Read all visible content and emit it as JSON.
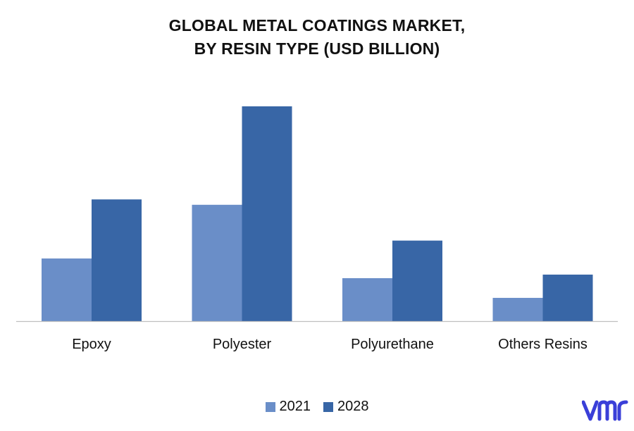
{
  "chart_data": {
    "type": "bar",
    "title_lines": [
      "GLOBAL METAL COATINGS MARKET,",
      "BY RESIN TYPE (USD BILLION)"
    ],
    "categories": [
      "Epoxy",
      "Polyester",
      "Polyurethane",
      "Others Resins"
    ],
    "series": [
      {
        "name": "2021",
        "color": "#6a8ec8",
        "values": [
          3.5,
          6.5,
          2.4,
          1.3
        ]
      },
      {
        "name": "2028",
        "color": "#3866a6",
        "values": [
          6.8,
          12.0,
          4.5,
          2.6
        ]
      }
    ],
    "xlabel": "",
    "ylabel": "",
    "ylim": [
      0,
      12.0
    ],
    "grid": false,
    "y_axis_visible": false,
    "legend_position": "bottom"
  },
  "brand": {
    "logo_color": "#3a3fd8",
    "logo_icon": "vmr-logo"
  }
}
